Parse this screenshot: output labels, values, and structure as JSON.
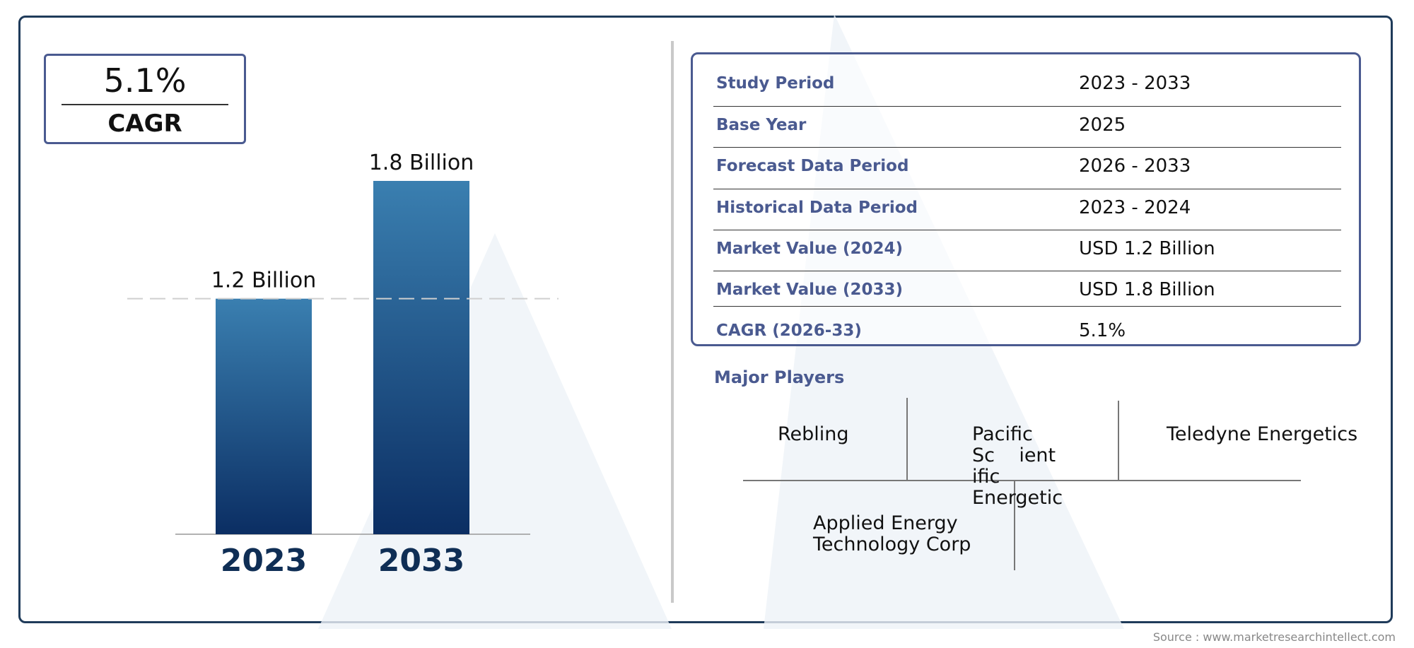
{
  "colors": {
    "frame": "#1f3b5a",
    "accent": "#4a5a90",
    "bar_top": "#3a7fb0",
    "bar_bottom": "#0b2e63",
    "year_label": "#0f2e55"
  },
  "cagr_badge": {
    "value": "5.1%",
    "label": "CAGR"
  },
  "chart_data": {
    "type": "bar",
    "categories": [
      "2023",
      "2033"
    ],
    "values": [
      1.2,
      1.8
    ],
    "data_labels": [
      "1.2 Billion",
      "1.8 Billion"
    ],
    "reference_line_value": 1.2,
    "ylim": [
      0,
      2
    ],
    "grid": false
  },
  "info_table": [
    {
      "label": "Study Period",
      "value": "2023 - 2033"
    },
    {
      "label": "Base Year",
      "value": "2025"
    },
    {
      "label": "Forecast Data Period",
      "value": "2026 - 2033"
    },
    {
      "label": "Historical Data Period",
      "value": "2023 - 2024"
    },
    {
      "label": "Market Value (2024)",
      "value": "USD 1.2 Billion"
    },
    {
      "label": "Market Value (2033)",
      "value": "USD 1.8 Billion"
    },
    {
      "label": "CAGR (2026-33)",
      "value": "5.1%"
    }
  ],
  "major_players": {
    "title": "Major Players",
    "players": [
      "Rebling",
      "Pacific\nSc    ient\nific\nEnergetic",
      "Teledyne Energetics",
      "Applied Energy\nTechnology Corp"
    ]
  },
  "source": "Source : www.marketresearchintellect.com"
}
